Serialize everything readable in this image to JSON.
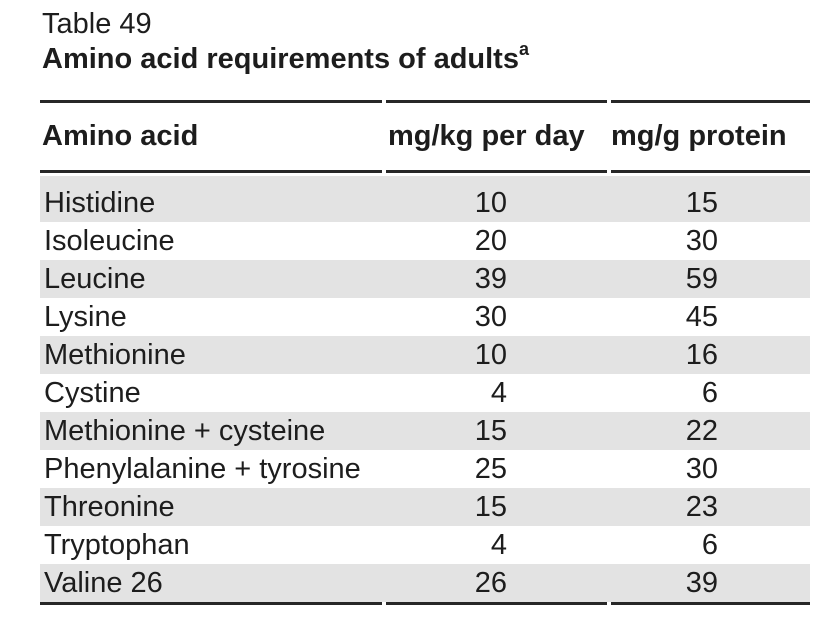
{
  "document": {
    "label": "Table 49",
    "title": "Amino acid requirements of adults",
    "footnote_marker": "a"
  },
  "table": {
    "headers": [
      "Amino acid",
      "mg/kg per day",
      "mg/g protein"
    ],
    "rows": [
      [
        "Histidine",
        "10",
        "15"
      ],
      [
        "Isoleucine",
        "20",
        "30"
      ],
      [
        "Leucine",
        "39",
        "59"
      ],
      [
        "Lysine",
        "30",
        "45"
      ],
      [
        "Methionine",
        "10",
        "16"
      ],
      [
        "Cystine",
        "4",
        "6"
      ],
      [
        "Methionine + cysteine",
        "15",
        "22"
      ],
      [
        "Phenylalanine + tyrosine",
        "25",
        "30"
      ],
      [
        "Threonine",
        "15",
        "23"
      ],
      [
        "Tryptophan",
        "4",
        "6"
      ],
      [
        "Valine 26",
        "26",
        "39"
      ]
    ]
  },
  "colors": {
    "bg": "#ffffff",
    "text": "#1d1d1d",
    "rule": "#272727",
    "shade": "#e3e3e3"
  }
}
